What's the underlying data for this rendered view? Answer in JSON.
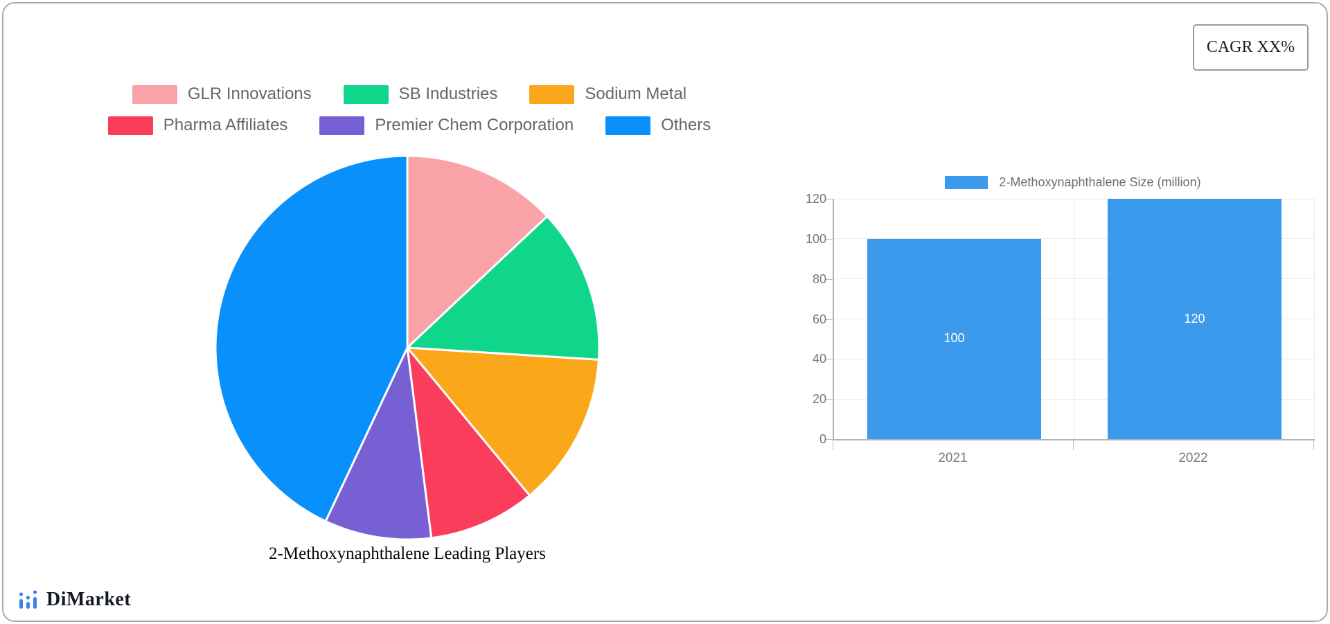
{
  "cagr": {
    "label": "CAGR XX%"
  },
  "logo": {
    "text": "DiMarket",
    "icon_color": "#3c82f5"
  },
  "chart_data": [
    {
      "type": "pie",
      "title": "2-Methoxynaphthalene Leading Players",
      "legend_position": "top",
      "start_angle_deg": 0,
      "direction": "clockwise",
      "slice_border_color": "#ffffff",
      "slices": [
        {
          "label": "GLR Innovations",
          "value": 13,
          "color": "#f9a3a8"
        },
        {
          "label": "SB Industries",
          "value": 13,
          "color": "#10d68c"
        },
        {
          "label": "Sodium Metal",
          "value": 13,
          "color": "#faa71b"
        },
        {
          "label": "Pharma Affiliates",
          "value": 9,
          "color": "#f93d5b"
        },
        {
          "label": "Premier Chem Corporation",
          "value": 9,
          "color": "#7660d3"
        },
        {
          "label": "Others",
          "value": 43,
          "color": "#0990fb"
        }
      ],
      "legend_rows": [
        [
          0,
          1,
          2
        ],
        [
          3,
          4,
          5
        ]
      ]
    },
    {
      "type": "bar",
      "series_label": "2-Methoxynaphthalene Size (million)",
      "categories": [
        "2021",
        "2022"
      ],
      "values": [
        100,
        120
      ],
      "value_labels": [
        "100",
        "120"
      ],
      "bar_color": "#3b9aec",
      "ylim": [
        0,
        120
      ],
      "yticks": [
        0,
        20,
        40,
        60,
        80,
        100,
        120
      ],
      "grid": true,
      "legend_position": "top"
    }
  ]
}
